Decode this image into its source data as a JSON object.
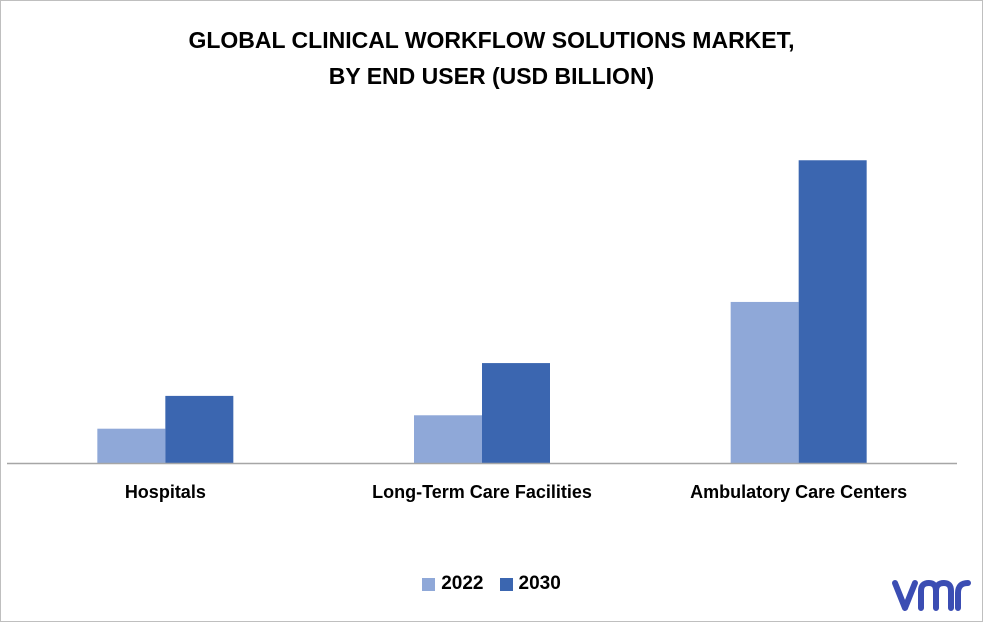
{
  "chart_data": {
    "type": "bar",
    "title_lines": [
      "GLOBAL CLINICAL WORKFLOW SOLUTIONS MARKET,",
      "BY END USER (USD BILLION)"
    ],
    "categories": [
      "Hospitals",
      "Long-Term Care Facilities",
      "Ambulatory Care Centers"
    ],
    "series": [
      {
        "name": "2022",
        "values": [
          1.15,
          1.6,
          5.4
        ],
        "color": "#8fa8d8"
      },
      {
        "name": "2030",
        "values": [
          2.25,
          3.35,
          10.15
        ],
        "color": "#3b66b0"
      }
    ],
    "ylim": [
      0,
      11.5
    ],
    "y_axis_visible": false,
    "grid": false,
    "legend_position": "bottom"
  },
  "logo": {
    "text": "vmr",
    "color": "#3b4db3",
    "icon": "vmr-logo-icon"
  }
}
